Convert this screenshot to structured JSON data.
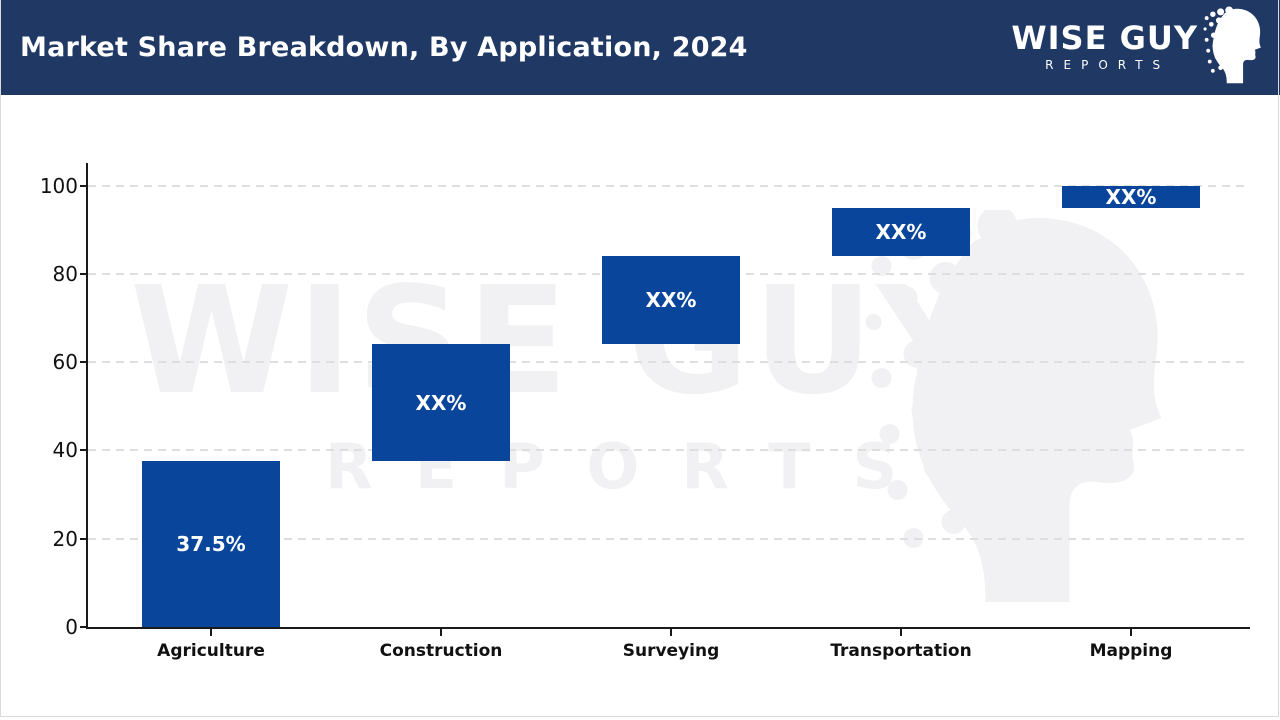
{
  "header": {
    "title": "Market Share Breakdown, By Application, 2024",
    "logo_line1": "WISE GUY",
    "logo_line2": "REPORTS"
  },
  "watermark": {
    "line1": "WISE GUY",
    "line2": "REPORTS"
  },
  "chart_data": {
    "type": "bar",
    "variant": "waterfall",
    "title": "Market Share Breakdown, By Application, 2024",
    "categories": [
      "Agriculture",
      "Construction",
      "Surveying",
      "Transportation",
      "Mapping"
    ],
    "segments": [
      {
        "category": "Agriculture",
        "start": 0,
        "end": 37.5,
        "label": "37.5%"
      },
      {
        "category": "Construction",
        "start": 37.5,
        "end": 64,
        "label": "XX%"
      },
      {
        "category": "Surveying",
        "start": 64,
        "end": 84,
        "label": "XX%"
      },
      {
        "category": "Transportation",
        "start": 84,
        "end": 95,
        "label": "XX%"
      },
      {
        "category": "Mapping",
        "start": 95,
        "end": 100,
        "label": "XX%"
      }
    ],
    "xlabel": "",
    "ylabel": "",
    "yticks": [
      0,
      20,
      40,
      60,
      80,
      100
    ],
    "ylim": [
      0,
      105
    ],
    "grid": "horizontal-dashed",
    "legend_position": "none",
    "colors": {
      "bar": "#09459b",
      "bar_label_text": "#ffffff",
      "header_bg": "#1f3864",
      "header_text": "#ffffff",
      "grid_line": "#dedede",
      "axis": "#1a1a1a",
      "watermark": "#f1f1f3"
    }
  }
}
